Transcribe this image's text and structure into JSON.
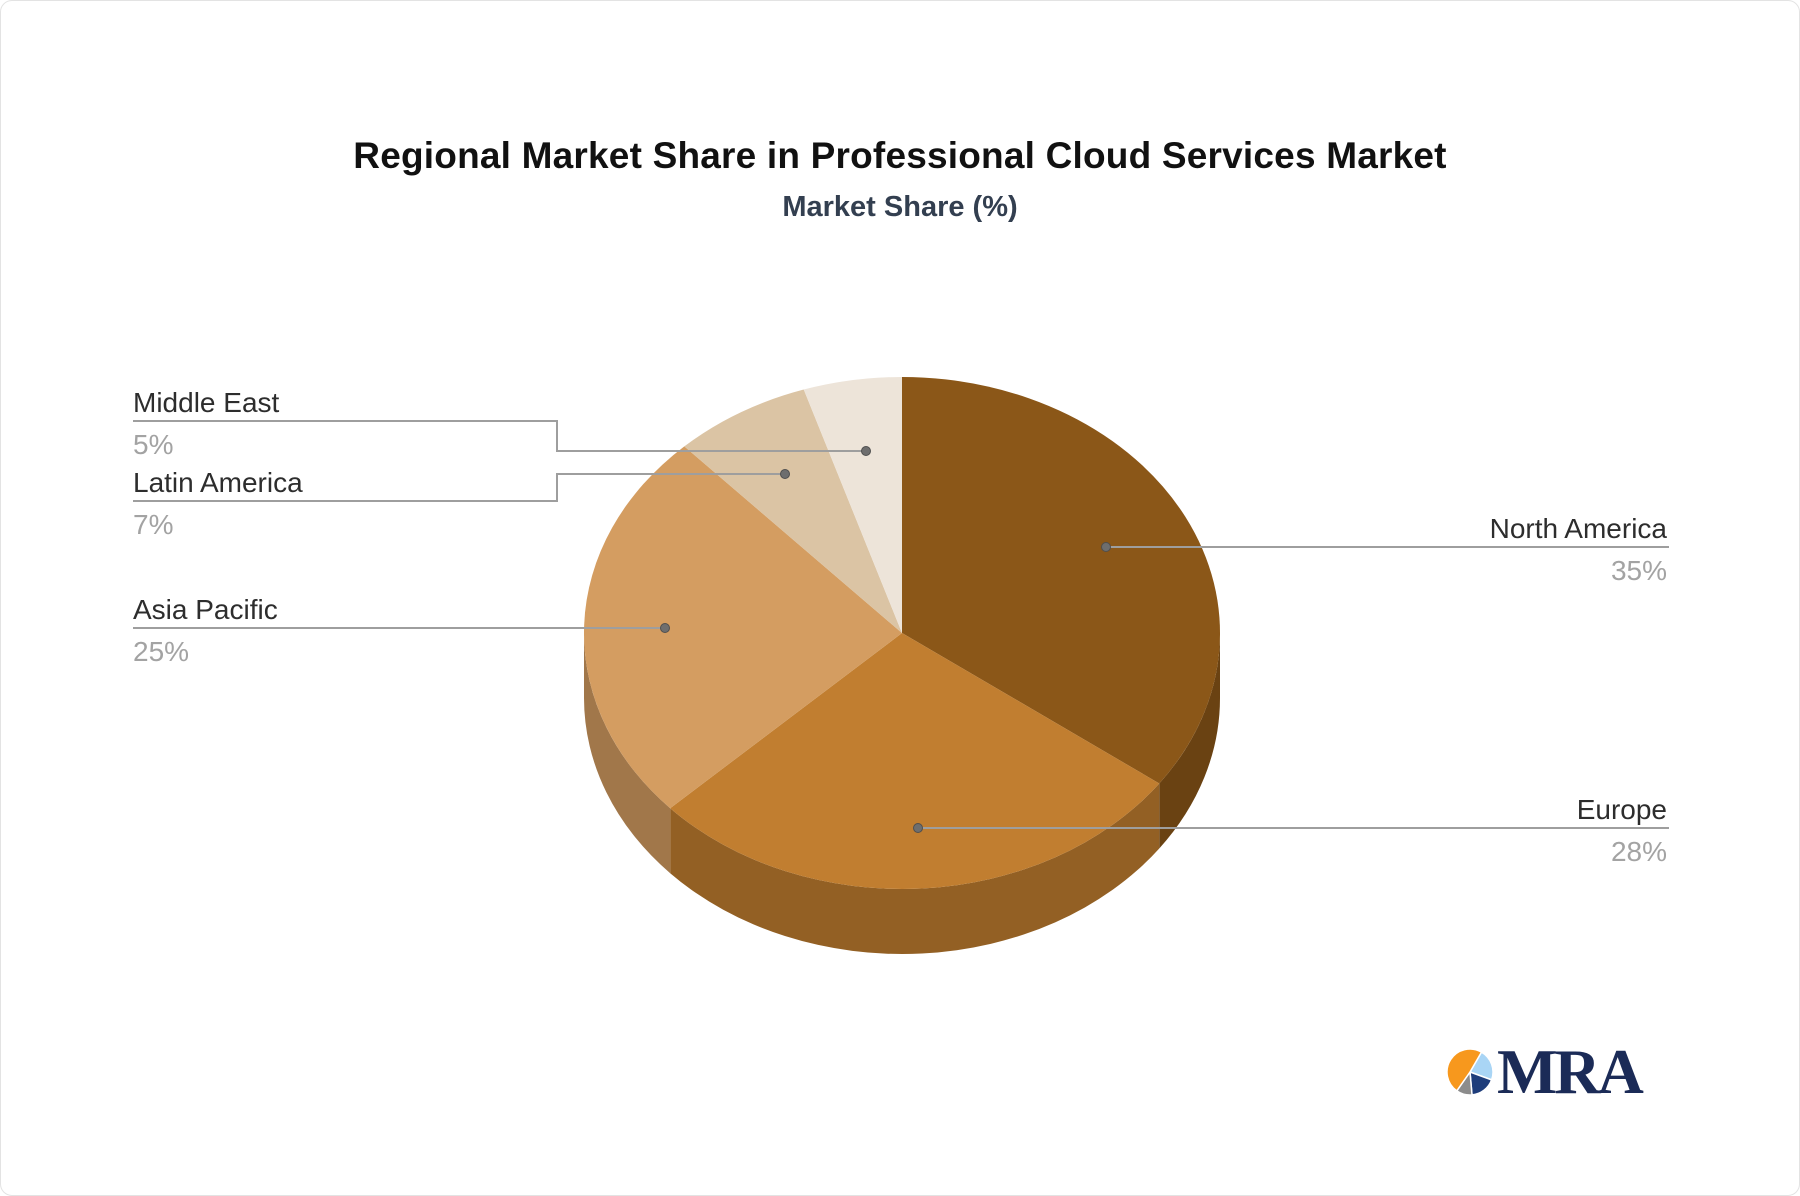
{
  "title": "Regional Market Share in Professional Cloud Services Market",
  "subtitle": "Market Share (%)",
  "chart_data": {
    "type": "pie",
    "style": "3d-pie",
    "unit": "%",
    "direction": "clockwise",
    "start_angle_deg": 0,
    "legend_position": "callout-labels",
    "grid": false,
    "series": [
      {
        "label": "North America",
        "value": 35,
        "display": "35%",
        "color": "#8B5718"
      },
      {
        "label": "Europe",
        "value": 28,
        "display": "28%",
        "color": "#C17E30"
      },
      {
        "label": "Asia Pacific",
        "value": 25,
        "display": "25%",
        "color": "#D49D61"
      },
      {
        "label": "Latin America",
        "value": 7,
        "display": "7%",
        "color": "#DBC4A4"
      },
      {
        "label": "Middle East",
        "value": 5,
        "display": "5%",
        "color": "#EDE4D9"
      }
    ]
  },
  "logo": {
    "text": "MRA",
    "text_color": "#1B2B57",
    "icon_colors": [
      "#F7981D",
      "#A9D5F5",
      "#1E3D7B",
      "#8C8C8C"
    ]
  },
  "colors": {
    "title_text": "#111111",
    "subtitle_text": "#333F50",
    "label_text": "#2D2D2D",
    "value_text": "#A3A3A3",
    "callout_line": "#9E9E9E",
    "callout_dot": "#6E6E6E",
    "background": "#FFFFFF"
  }
}
